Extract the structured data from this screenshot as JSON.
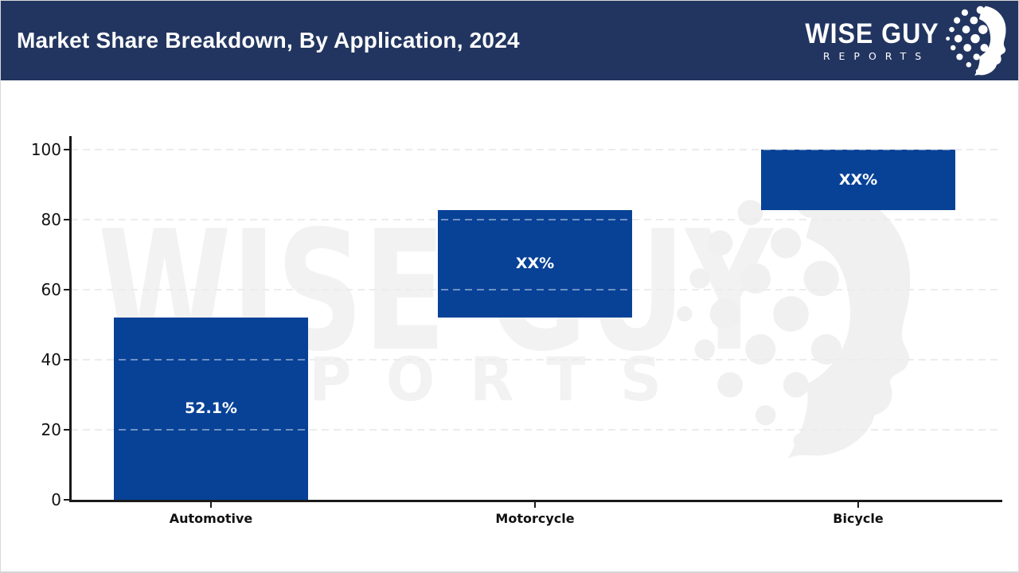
{
  "header": {
    "title": "Market Share Breakdown, By Application, 2024",
    "logo": {
      "line1": "WISE GUY",
      "line2": "REPORTS"
    }
  },
  "watermark": {
    "line1": "WISE GUY",
    "line2": "REPORTS"
  },
  "chart_data": {
    "type": "bar",
    "subtype": "waterfall-stacked-segments",
    "title": "Market Share Breakdown, By Application, 2024",
    "categories": [
      "Automotive",
      "Motorcycle",
      "Bicycle"
    ],
    "series": [
      {
        "name": "Market Share %",
        "segments": [
          {
            "category": "Automotive",
            "start": 0,
            "end": 52.1,
            "label": "52.1%"
          },
          {
            "category": "Motorcycle",
            "start": 52.1,
            "end": 82.7,
            "label": "XX%"
          },
          {
            "category": "Bicycle",
            "start": 82.7,
            "end": 100,
            "label": "XX%"
          }
        ]
      }
    ],
    "xlabel": "",
    "ylabel": "",
    "ylim": [
      0,
      100
    ],
    "yticks": [
      0,
      20,
      40,
      60,
      80,
      100
    ],
    "grid": "horizontal-dashed",
    "legend": "none",
    "bar_color": "#084297",
    "grid_color": "#dedede",
    "axis_color": "#1a1a1a",
    "header_color": "#223560"
  }
}
